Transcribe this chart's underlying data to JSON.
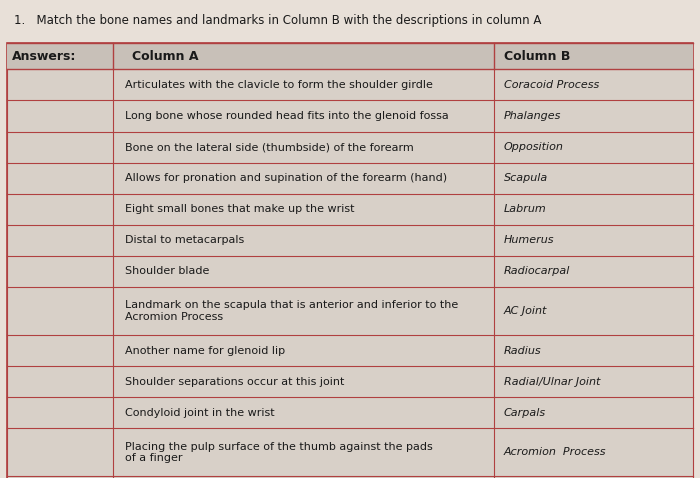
{
  "title": "1.   Match the bone names and landmarks in Column B with the descriptions in column A",
  "header_answers": "Answers:",
  "header_col_a": "Column A",
  "header_col_b": "Column B",
  "rows": [
    {
      "col_a": "Articulates with the clavicle to form the shoulder girdle",
      "col_b": "Coracoid Process"
    },
    {
      "col_a": "Long bone whose rounded head fits into the glenoid fossa",
      "col_b": "Phalanges"
    },
    {
      "col_a": "Bone on the lateral side (thumbside) of the forearm",
      "col_b": "Opposition",
      "underline_word": "thumbside"
    },
    {
      "col_a": "Allows for pronation and supination of the forearm (hand)",
      "col_b": "Scapula"
    },
    {
      "col_a": "Eight small bones that make up the wrist",
      "col_b": "Labrum"
    },
    {
      "col_a": "Distal to metacarpals",
      "col_b": "Humerus"
    },
    {
      "col_a": "Shoulder blade",
      "col_b": "Radiocarpal"
    },
    {
      "col_a": "Landmark on the scapula that is anterior and inferior to the\nAcromion Process",
      "col_b": "AC Joint"
    },
    {
      "col_a": "Another name for glenoid lip",
      "col_b": "Radius"
    },
    {
      "col_a": "Shoulder separations occur at this joint",
      "col_b": "Radial/Ulnar Joint"
    },
    {
      "col_a": "Condyloid joint in the wrist",
      "col_b": "Carpals"
    },
    {
      "col_a": "Placing the pulp surface of the thumb against the pads\nof a finger",
      "col_b": "Acromion  Process"
    },
    {
      "col_a": "",
      "col_b": ""
    }
  ],
  "bg_color": "#d8d0c8",
  "header_bg": "#c8c0b8",
  "border_color": "#b04040",
  "text_color": "#1a1a1a",
  "col_a_italic": false,
  "col_b_italic": true,
  "fig_width": 7.0,
  "fig_height": 4.78,
  "title_fontsize": 8.5,
  "header_fontsize": 9,
  "cell_fontsize": 8
}
